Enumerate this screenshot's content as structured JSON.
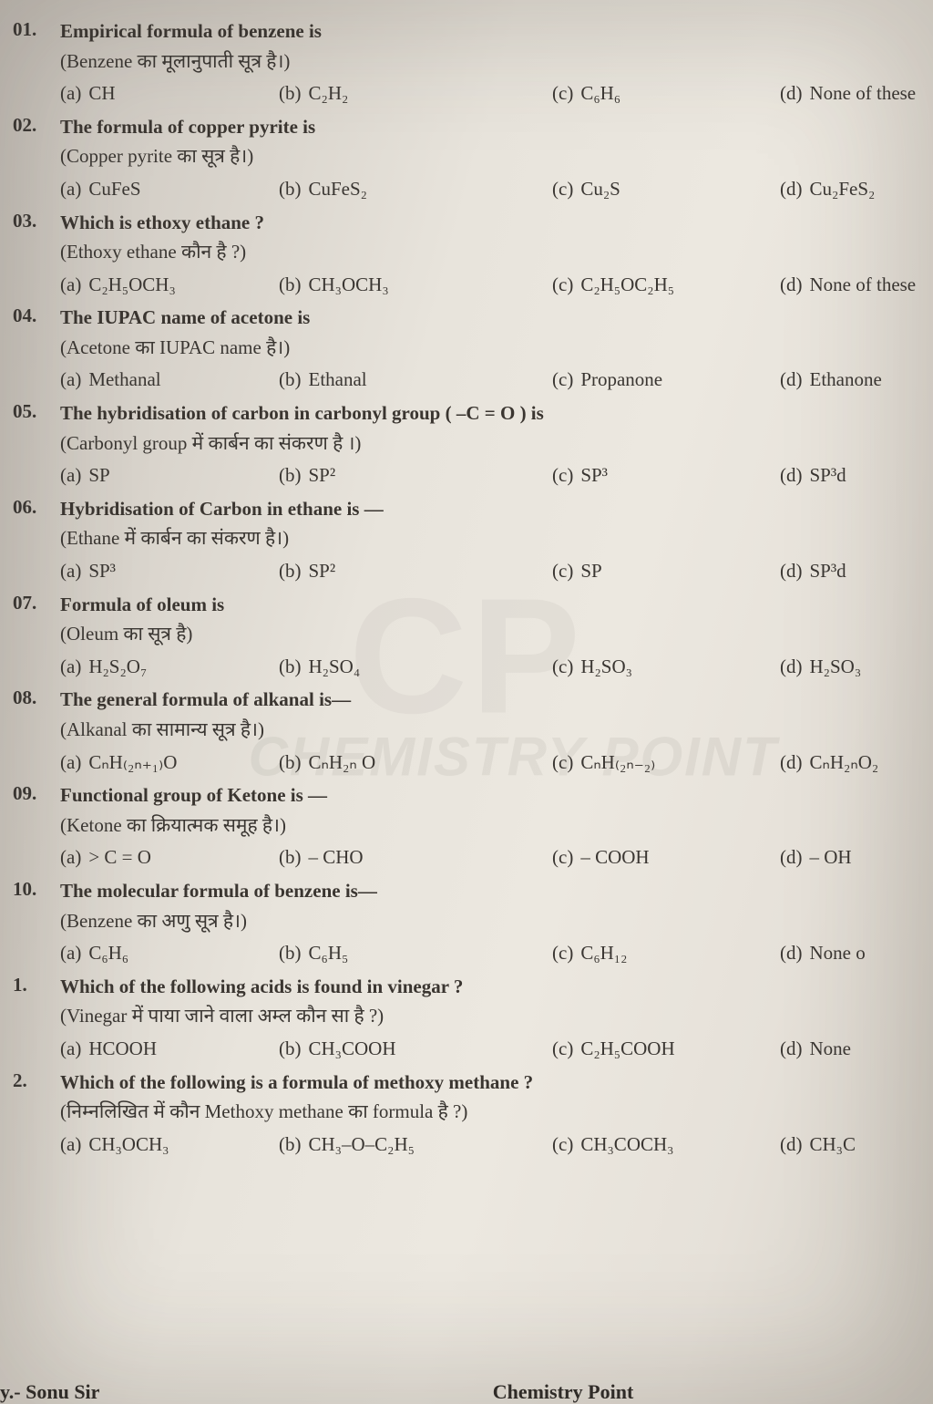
{
  "watermark_large": "CP",
  "watermark_small": "CHEMISTRY POINT",
  "footer": {
    "left": "y.- Sonu Sir",
    "center": "Chemistry Point"
  },
  "questions": [
    {
      "num": "01.",
      "text_en": "Empirical formula of benzene is",
      "text_hi": "(Benzene का मूलानुपाती सूत्र है।)",
      "opts": {
        "a": "CH",
        "b": "C₂H₂",
        "c": "C₆H₆",
        "d": "None of these"
      }
    },
    {
      "num": "02.",
      "text_en": "The formula of copper pyrite is",
      "text_hi": "(Copper pyrite का सूत्र है।)",
      "opts": {
        "a": "CuFeS",
        "b": "CuFeS₂",
        "c": "Cu₂S",
        "d": "Cu₂FeS₂"
      }
    },
    {
      "num": "03.",
      "text_en": "Which is ethoxy ethane ?",
      "text_hi": "(Ethoxy ethane कौन है ?)",
      "opts": {
        "a": "C₂H₅OCH₃",
        "b": "CH₃OCH₃",
        "c": "C₂H₅OC₂H₅",
        "d": "None of these"
      }
    },
    {
      "num": "04.",
      "text_en": "The IUPAC name of acetone is",
      "text_hi": "(Acetone का IUPAC name है।)",
      "opts": {
        "a": "Methanal",
        "b": "Ethanal",
        "c": "Propanone",
        "d": "Ethanone"
      }
    },
    {
      "num": "05.",
      "text_en": "The hybridisation of carbon in carbonyl group ( –C = O ) is",
      "text_hi": "(Carbonyl group में कार्बन का संकरण है ।)",
      "opts": {
        "a": "SP",
        "b": "SP²",
        "c": "SP³",
        "d": "SP³d"
      }
    },
    {
      "num": "06.",
      "text_en": "Hybridisation of Carbon in ethane is —",
      "text_hi": "(Ethane में कार्बन का संकरण है।)",
      "opts": {
        "a": "SP³",
        "b": "SP²",
        "c": "SP",
        "d": "SP³d"
      }
    },
    {
      "num": "07.",
      "text_en": "Formula of oleum is",
      "text_hi": "(Oleum का सूत्र है)",
      "opts": {
        "a": "H₂S₂O₇",
        "b": "H₂SO₄",
        "c": "H₂SO₃",
        "d": "H₂SO₃"
      }
    },
    {
      "num": "08.",
      "text_en": "The general formula of alkanal is—",
      "text_hi": "(Alkanal का सामान्य सूत्र है।)",
      "opts": {
        "a": "CₙH₍₂ₙ₊₁₎O",
        "b": "CₙH₂ₙ O",
        "c": "CₙH₍₂ₙ₋₂₎",
        "d": "CₙH₂ₙO₂"
      }
    },
    {
      "num": "09.",
      "text_en": "Functional group of Ketone is —",
      "text_hi": "(Ketone का क्रियात्मक समूह है।)",
      "opts": {
        "a": "> C = O",
        "b": "– CHO",
        "c": "– COOH",
        "d": "– OH"
      }
    },
    {
      "num": "10.",
      "text_en": "The molecular formula of benzene is—",
      "text_hi": "(Benzene का अणु सूत्र है।)",
      "opts": {
        "a": "C₆H₆",
        "b": "C₆H₅",
        "c": "C₆H₁₂",
        "d": "None o"
      }
    },
    {
      "num": "1.",
      "text_en": "Which of the following acids is found in vinegar ?",
      "text_hi": "(Vinegar में पाया जाने वाला अम्ल कौन सा है ?)",
      "opts": {
        "a": "HCOOH",
        "b": "CH₃COOH",
        "c": "C₂H₅COOH",
        "d": "None"
      }
    },
    {
      "num": "2.",
      "text_en": "Which of the following is a formula of methoxy methane ?",
      "text_hi": "(निम्नलिखित में कौन Methoxy methane का formula है ?)",
      "opts": {
        "a": "CH₃OCH₃",
        "b": "CH₃–O–C₂H₅",
        "c": "CH₃COCH₃",
        "d": "CH₃C"
      }
    }
  ]
}
